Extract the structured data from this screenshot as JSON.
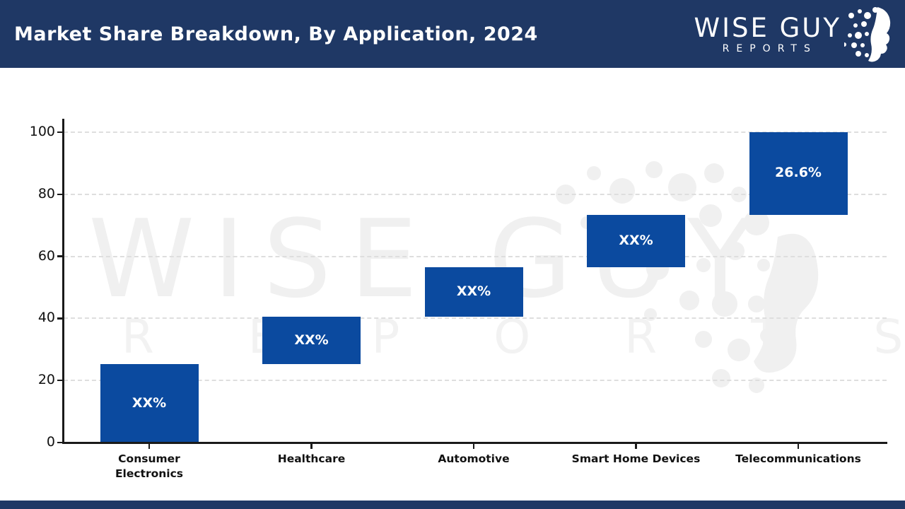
{
  "header": {
    "title": "Market Share Breakdown, By Application, 2024",
    "logo": {
      "line1": "WISE GUY",
      "line2": "REPORTS"
    }
  },
  "watermark": {
    "line1": "WISE GUY",
    "line2": "REPORTS"
  },
  "chart_data": {
    "type": "bar",
    "subtype": "waterfall",
    "title": "Market Share Breakdown, By Application, 2024",
    "categories": [
      "Consumer Electronics",
      "Healthcare",
      "Automotive",
      "Smart Home Devices",
      "Telecommunications"
    ],
    "tick_labels": [
      "Consumer\nElectronics",
      "Healthcare",
      "Automotive",
      "Smart Home Devices",
      "Telecommunications"
    ],
    "segments": [
      {
        "category": "Consumer Electronics",
        "start": 0,
        "end": 25.2,
        "label": "XX%"
      },
      {
        "category": "Healthcare",
        "start": 25.2,
        "end": 40.5,
        "label": "XX%"
      },
      {
        "category": "Automotive",
        "start": 40.5,
        "end": 56.4,
        "label": "XX%"
      },
      {
        "category": "Smart Home Devices",
        "start": 56.4,
        "end": 73.4,
        "label": "XX%"
      },
      {
        "category": "Telecommunications",
        "start": 73.4,
        "end": 100,
        "label": "26.6%"
      }
    ],
    "ylim": [
      0,
      100
    ],
    "yticks": [
      0,
      20,
      40,
      60,
      80,
      100
    ],
    "xlabel": "",
    "ylabel": "",
    "grid": "dashed-horizontal",
    "legend": "none",
    "bar_color": "#0B4A9F",
    "value_label_color": "#FFFFFF"
  },
  "colors": {
    "header_bg": "#1F3865",
    "footer_bg": "#1F3865",
    "bar": "#0B4A9F",
    "grid": "#DEDEDE",
    "axis": "#1A1A1A",
    "watermark": "#F0F0F0"
  }
}
